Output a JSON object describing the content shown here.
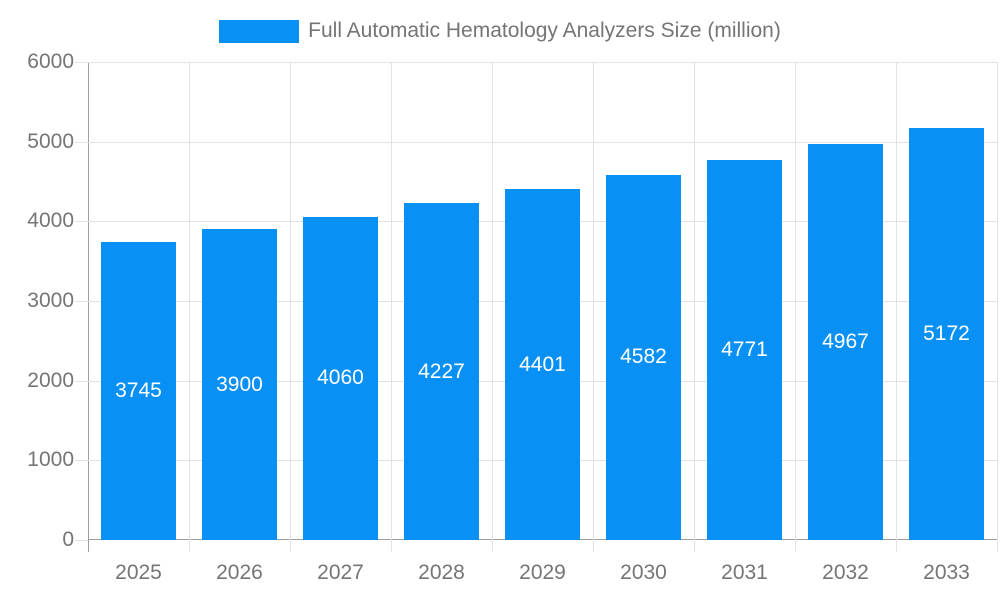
{
  "legend": {
    "label": "Full Automatic Hematology Analyzers Size (million)"
  },
  "chart_data": {
    "type": "bar",
    "title": "Full Automatic Hematology Analyzers Size (million)",
    "categories": [
      "2025",
      "2026",
      "2027",
      "2028",
      "2029",
      "2030",
      "2031",
      "2032",
      "2033"
    ],
    "values": [
      3745,
      3900,
      4060,
      4227,
      4401,
      4582,
      4771,
      4967,
      5172
    ],
    "xlabel": "",
    "ylabel": "",
    "ylim": [
      0,
      6000
    ],
    "yticks": [
      0,
      1000,
      2000,
      3000,
      4000,
      5000,
      6000
    ],
    "grid": true,
    "legend_position": "top",
    "bar_width_ratio": 0.75,
    "value_labels": "centered-inside-white",
    "colors": {
      "bar": "#0990f5",
      "bar_label": "#ffffff",
      "axis_text": "#757575",
      "grid_line": "#e2e2e2",
      "axis_line": "#9e9e9e"
    }
  }
}
